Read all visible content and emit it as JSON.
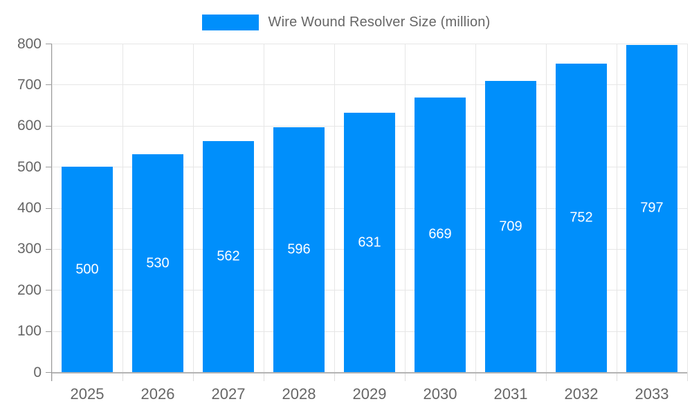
{
  "colors": {
    "bar": "#008FFB",
    "legend_text": "#666666",
    "axis_text": "#666666",
    "grid": "#E6E6E6",
    "axis_line": "#999999",
    "baseline": "#B3B3B3",
    "xtick_line": "#DDDDDD",
    "value_label": "#FFFFFF"
  },
  "chart_data": {
    "type": "bar",
    "title": "Wire Wound Resolver Size (million)",
    "categories": [
      "2025",
      "2026",
      "2027",
      "2028",
      "2029",
      "2030",
      "2031",
      "2032",
      "2033"
    ],
    "series": [
      {
        "name": "Wire Wound Resolver Size (million)",
        "values": [
          500,
          530,
          562,
          596,
          631,
          669,
          709,
          752,
          797
        ]
      }
    ],
    "xlabel": "",
    "ylabel": "",
    "ylim": [
      0,
      800
    ],
    "yticks": [
      0,
      100,
      200,
      300,
      400,
      500,
      600,
      700,
      800
    ],
    "grid": true,
    "legend_position": "top",
    "value_label_position": "inside-center"
  }
}
